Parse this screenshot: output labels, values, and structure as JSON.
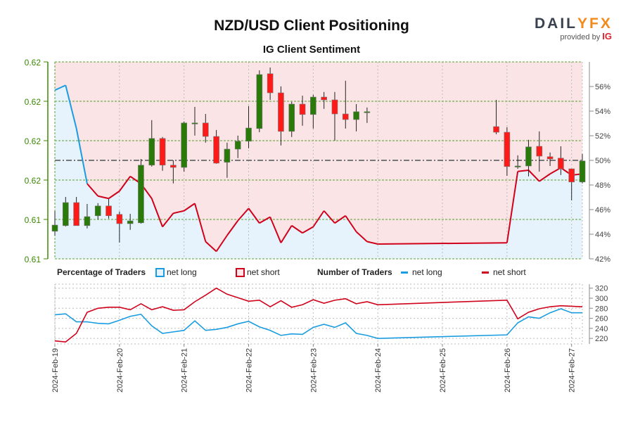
{
  "title": "NZD/USD Client Positioning",
  "subtitle": "IG Client Sentiment",
  "logo": {
    "brand": "DAILYFX",
    "provided_by": "provided by",
    "ig": "IG"
  },
  "legend": {
    "pct_label": "Percentage of Traders",
    "pct_long": "net long",
    "pct_short": "net short",
    "num_label": "Number of Traders",
    "num_long": "net long",
    "num_short": "net short"
  },
  "colors": {
    "bull": "#2a7a0a",
    "bear": "#ff1a1a",
    "long": "#1a9de0",
    "short": "#d0021b",
    "pink": "#fbe4e6",
    "blue_fill": "#e6f3fc",
    "grid_green": "#5aa02c",
    "axis_green": "#3a8a00"
  },
  "chart_data": [
    {
      "type": "candlestick",
      "title": "NZD/USD Client Positioning",
      "subtitle": "IG Client Sentiment",
      "x_unit": "4-hour periods since 2024-02-19",
      "price_ylim": [
        0.6125,
        0.6195
      ],
      "price_ticks": [
        0.6125,
        0.6139,
        0.6153,
        0.6167,
        0.6181,
        0.6195
      ],
      "price_tick_labels": [
        "0.61",
        "0.61",
        "0.62",
        "0.62",
        "0.62",
        "0.62"
      ],
      "pct_ylim": [
        42,
        58
      ],
      "pct_tick_labels": [
        "42%",
        "44%",
        "46%",
        "48%",
        "50%",
        "52%",
        "54%",
        "56%"
      ],
      "pct_ticks": [
        42,
        44,
        46,
        48,
        50,
        52,
        54,
        56
      ],
      "candles": [
        [
          0,
          0.61348,
          0.6142,
          0.61333,
          0.6137
        ],
        [
          1,
          0.61368,
          0.6147,
          0.61365,
          0.6145
        ],
        [
          2,
          0.6145,
          0.6147,
          0.61368,
          0.61368
        ],
        [
          3,
          0.61368,
          0.61445,
          0.61358,
          0.614
        ],
        [
          4,
          0.61403,
          0.61448,
          0.6139,
          0.61438
        ],
        [
          5,
          0.61438,
          0.61463,
          0.61393,
          0.61403
        ],
        [
          6,
          0.61408,
          0.61418,
          0.61308,
          0.61375
        ],
        [
          7,
          0.61375,
          0.6141,
          0.61353,
          0.61385
        ],
        [
          8,
          0.61378,
          0.61605,
          0.61375,
          0.61583
        ],
        [
          9,
          0.61583,
          0.61743,
          0.61578,
          0.61678
        ],
        [
          10,
          0.61678,
          0.61683,
          0.61563,
          0.61583
        ],
        [
          11,
          0.61583,
          0.616,
          0.61518,
          0.61575
        ],
        [
          12,
          0.61575,
          0.61738,
          0.6156,
          0.61733
        ],
        [
          13,
          0.61733,
          0.6179,
          0.61688,
          0.61733
        ],
        [
          14,
          0.61733,
          0.61765,
          0.61663,
          0.61685
        ],
        [
          15,
          0.61685,
          0.61708,
          0.61588,
          0.6159
        ],
        [
          16,
          0.61593,
          0.61663,
          0.61538,
          0.6164
        ],
        [
          17,
          0.6164,
          0.61688,
          0.61608,
          0.61668
        ],
        [
          18,
          0.61668,
          0.61793,
          0.61643,
          0.61715
        ],
        [
          19,
          0.61713,
          0.6192,
          0.617,
          0.61905
        ],
        [
          20,
          0.61908,
          0.6193,
          0.61815,
          0.6184
        ],
        [
          21,
          0.6184,
          0.61863,
          0.61653,
          0.61703
        ],
        [
          22,
          0.61703,
          0.61808,
          0.61683,
          0.618
        ],
        [
          23,
          0.618,
          0.6183,
          0.61723,
          0.61763
        ],
        [
          24,
          0.61763,
          0.61833,
          0.61713,
          0.61825
        ],
        [
          25,
          0.61825,
          0.61843,
          0.61783,
          0.61815
        ],
        [
          26,
          0.61815,
          0.61843,
          0.6167,
          0.61765
        ],
        [
          27,
          0.61765,
          0.61883,
          0.61713,
          0.61745
        ],
        [
          28,
          0.61745,
          0.618,
          0.61703,
          0.61773
        ],
        [
          29,
          0.61773,
          0.61788,
          0.61733,
          0.61773
        ],
        [
          41,
          0.6172,
          0.61815,
          0.61693,
          0.617
        ],
        [
          42,
          0.617,
          0.61718,
          0.61545,
          0.61578
        ],
        [
          43,
          0.61578,
          0.61618,
          0.6157,
          0.6158
        ],
        [
          44,
          0.6158,
          0.61673,
          0.61543,
          0.61648
        ],
        [
          45,
          0.6165,
          0.61703,
          0.6156,
          0.61615
        ],
        [
          46,
          0.61613,
          0.61628,
          0.6158,
          0.61605
        ],
        [
          47,
          0.61608,
          0.6165,
          0.61548,
          0.6157
        ],
        [
          48,
          0.6157,
          0.6157,
          0.61458,
          0.61523
        ],
        [
          49,
          0.61523,
          0.61623,
          0.61518,
          0.61598
        ]
      ],
      "candle_fields": [
        "period",
        "open",
        "high",
        "low",
        "close"
      ],
      "net_long_pct": [
        [
          0,
          55.7
        ],
        [
          1,
          56.1
        ],
        [
          2,
          52.6
        ],
        [
          3,
          48.1
        ],
        [
          4,
          47.1
        ],
        [
          5,
          46.9
        ],
        [
          6,
          47.5
        ],
        [
          7,
          48.7
        ],
        [
          8,
          48.1
        ],
        [
          9,
          46.9
        ],
        [
          10,
          44.6
        ],
        [
          11,
          45.7
        ],
        [
          12,
          45.9
        ],
        [
          13,
          46.5
        ],
        [
          14,
          43.4
        ],
        [
          15,
          42.6
        ],
        [
          16,
          43.9
        ],
        [
          17,
          45.1
        ],
        [
          18,
          46.1
        ],
        [
          19,
          44.9
        ],
        [
          20,
          45.4
        ],
        [
          21,
          43.3
        ],
        [
          22,
          44.7
        ],
        [
          23,
          44.1
        ],
        [
          24,
          44.6
        ],
        [
          25,
          45.9
        ],
        [
          26,
          44.9
        ],
        [
          27,
          45.5
        ],
        [
          28,
          44.2
        ],
        [
          29,
          43.4
        ],
        [
          30,
          43.2
        ],
        [
          42,
          43.3
        ],
        [
          43,
          49.1
        ],
        [
          44,
          49.2
        ],
        [
          45,
          48.3
        ],
        [
          46,
          48.9
        ],
        [
          47,
          49.4
        ],
        [
          48,
          48.8
        ],
        [
          49,
          48.9
        ]
      ]
    },
    {
      "type": "line",
      "title": "Number of Traders",
      "ylim": [
        209,
        328
      ],
      "yticks": [
        220,
        240,
        260,
        280,
        300,
        320
      ],
      "x_tick_labels": [
        "2024-Feb-19",
        "2024-Feb-20",
        "2024-Feb-21",
        "2024-Feb-22",
        "2024-Feb-23",
        "2024-Feb-24",
        "2024-Feb-25",
        "2024-Feb-26",
        "2024-Feb-27"
      ],
      "series": [
        {
          "name": "net long",
          "values": [
            [
              0,
              267
            ],
            [
              1,
              269
            ],
            [
              2,
              253
            ],
            [
              3,
              253
            ],
            [
              4,
              250
            ],
            [
              5,
              249
            ],
            [
              6,
              256
            ],
            [
              7,
              264
            ],
            [
              8,
              268
            ],
            [
              9,
              245
            ],
            [
              10,
              230
            ],
            [
              11,
              233
            ],
            [
              12,
              236
            ],
            [
              13,
              255
            ],
            [
              14,
              236
            ],
            [
              15,
              238
            ],
            [
              16,
              242
            ],
            [
              17,
              249
            ],
            [
              18,
              254
            ],
            [
              19,
              243
            ],
            [
              20,
              236
            ],
            [
              21,
              226
            ],
            [
              22,
              229
            ],
            [
              23,
              228
            ],
            [
              24,
              242
            ],
            [
              25,
              248
            ],
            [
              26,
              242
            ],
            [
              27,
              251
            ],
            [
              28,
              230
            ],
            [
              29,
              226
            ],
            [
              30,
              220
            ],
            [
              42,
              227
            ],
            [
              43,
              251
            ],
            [
              44,
              263
            ],
            [
              45,
              260
            ],
            [
              46,
              271
            ],
            [
              47,
              279
            ],
            [
              48,
              271
            ],
            [
              49,
              271
            ]
          ]
        },
        {
          "name": "net short",
          "values": [
            [
              0,
              215
            ],
            [
              1,
              213
            ],
            [
              2,
              230
            ],
            [
              3,
              272
            ],
            [
              4,
              280
            ],
            [
              5,
              282
            ],
            [
              6,
              282
            ],
            [
              7,
              277
            ],
            [
              8,
              289
            ],
            [
              9,
              277
            ],
            [
              10,
              283
            ],
            [
              11,
              276
            ],
            [
              12,
              277
            ],
            [
              13,
              293
            ],
            [
              14,
              306
            ],
            [
              15,
              320
            ],
            [
              16,
              308
            ],
            [
              17,
              301
            ],
            [
              18,
              294
            ],
            [
              19,
              296
            ],
            [
              20,
              283
            ],
            [
              21,
              295
            ],
            [
              22,
              282
            ],
            [
              23,
              287
            ],
            [
              24,
              297
            ],
            [
              25,
              290
            ],
            [
              26,
              296
            ],
            [
              27,
              299
            ],
            [
              28,
              289
            ],
            [
              29,
              293
            ],
            [
              30,
              287
            ],
            [
              42,
              296
            ],
            [
              43,
              259
            ],
            [
              44,
              272
            ],
            [
              45,
              279
            ],
            [
              46,
              283
            ],
            [
              47,
              285
            ],
            [
              48,
              284
            ],
            [
              49,
              283
            ]
          ]
        }
      ]
    }
  ]
}
